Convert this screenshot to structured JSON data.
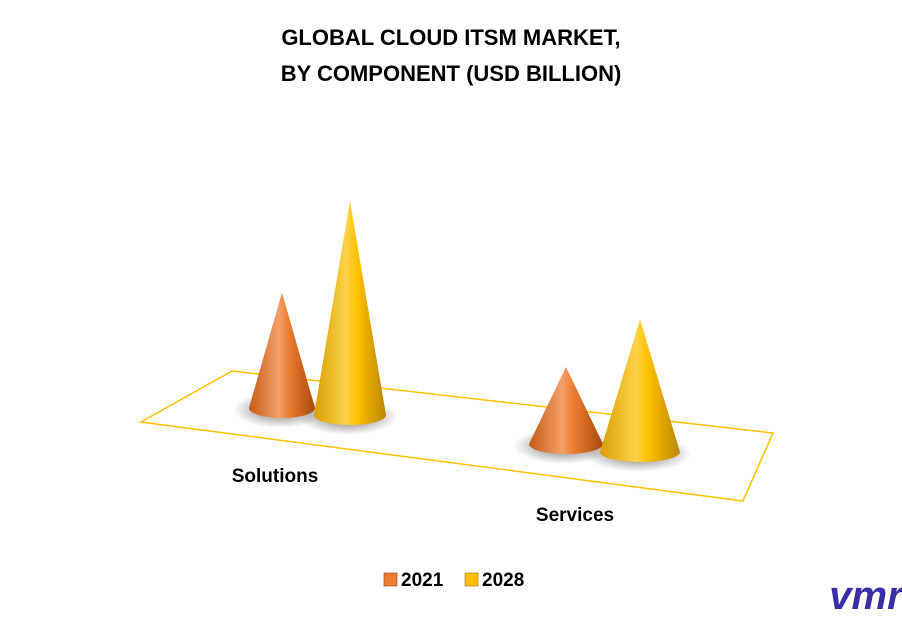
{
  "chart_data": {
    "type": "bar",
    "title_lines": [
      "GLOBAL CLOUD ITSM MARKET,",
      "BY COMPONENT (USD BILLION)"
    ],
    "categories": [
      "Solutions",
      "Services"
    ],
    "series": [
      {
        "name": "2021",
        "values": [
          2.7,
          1.8
        ]
      },
      {
        "name": "2028",
        "values": [
          5.0,
          3.1
        ]
      }
    ],
    "ylim": [
      0,
      5.5
    ],
    "grid": false,
    "legend_position": "bottom",
    "colors": {
      "2021": "#ED7D31",
      "2028": "#FFC000",
      "floor": "#FFC000"
    }
  },
  "logo": {
    "text": "vmr",
    "color": "#3A2DA8"
  }
}
